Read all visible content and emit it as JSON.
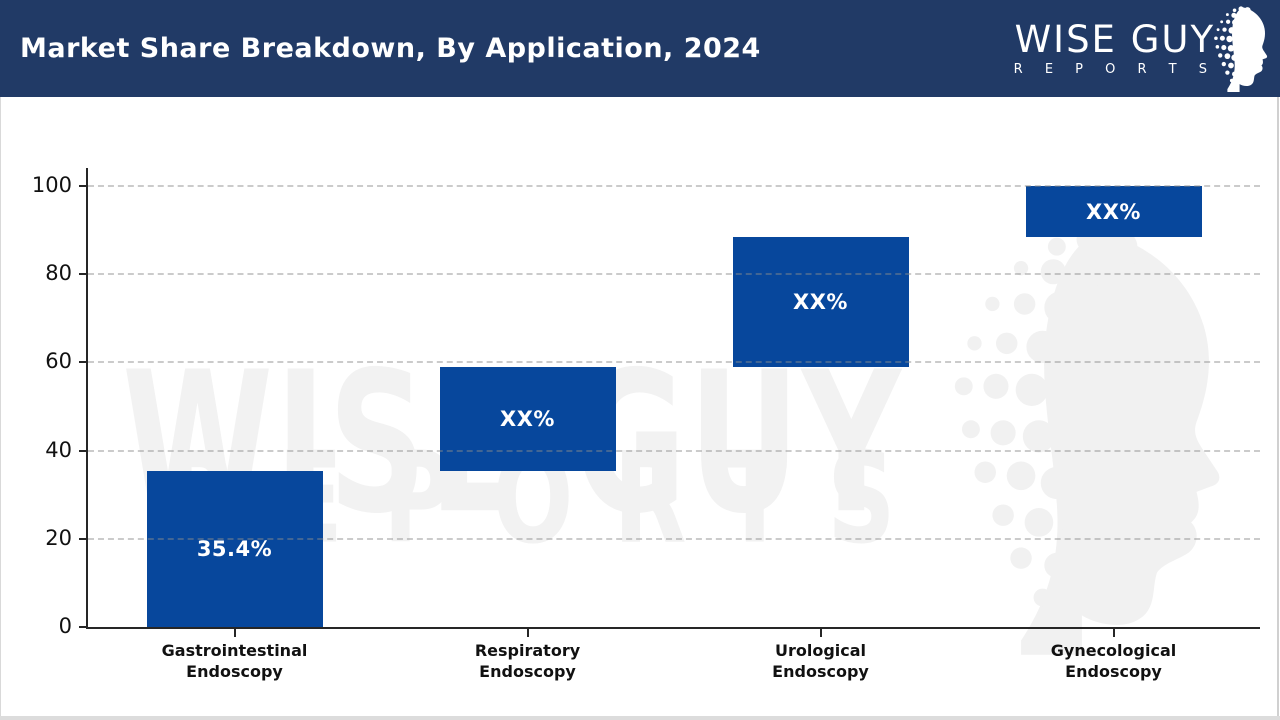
{
  "header": {
    "title": "Market Share Breakdown, By Application, 2024",
    "bg_color": "#213a66",
    "brand": {
      "line1": "WISE GUY",
      "line2": "R E P O R T S"
    }
  },
  "watermark": {
    "line1": "WISE GUY",
    "line2": "REPORTS"
  },
  "colors": {
    "bar": "#07479c",
    "header_navy": "#213a66",
    "grid": "rgba(140,140,140,0.45)",
    "watermark_gray": "#f2f2f2",
    "axis": "#262626"
  },
  "chart_data": {
    "type": "bar",
    "subtype": "waterfall-stacked-progression",
    "title": "Market Share Breakdown, By Application, 2024",
    "xlabel": "",
    "ylabel": "",
    "ylim": [
      0,
      105
    ],
    "yticks": [
      0,
      20,
      40,
      60,
      80,
      100
    ],
    "grid": true,
    "grid_style": "dashed, drawn above bars",
    "legend": "none",
    "categories": [
      [
        "Gastrointestinal",
        "Endoscopy"
      ],
      [
        "Respiratory",
        "Endoscopy"
      ],
      [
        "Urological",
        "Endoscopy"
      ],
      [
        "Gynecological",
        "Endoscopy"
      ]
    ],
    "segments": [
      {
        "label": "35.4%",
        "start": 0,
        "end": 35.4,
        "value": 35.4
      },
      {
        "label": "XX%",
        "start": 35.4,
        "end": 59.0,
        "value": 23.6
      },
      {
        "label": "XX%",
        "start": 59.0,
        "end": 88.4,
        "value": 29.4
      },
      {
        "label": "XX%",
        "start": 88.4,
        "end": 100.0,
        "value": 11.6
      }
    ]
  }
}
